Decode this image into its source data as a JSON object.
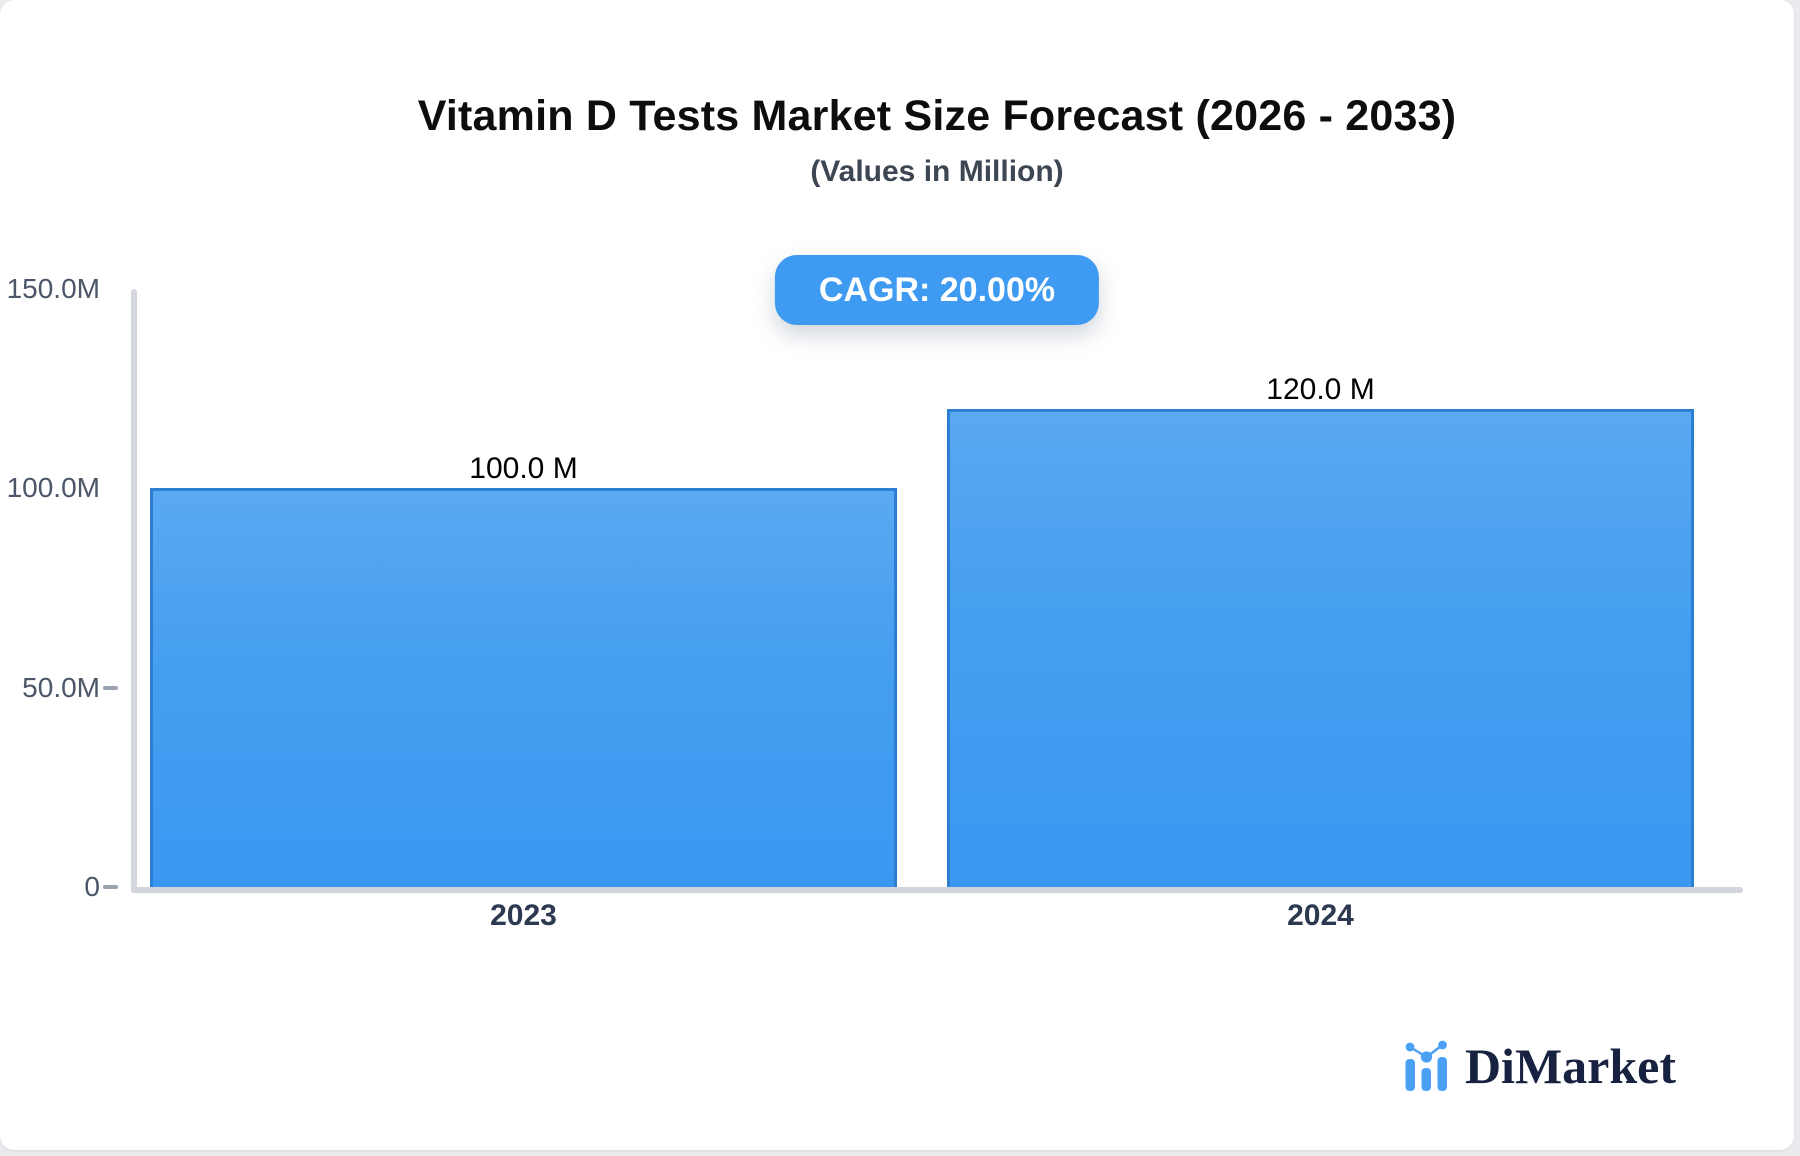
{
  "header": {
    "title": "Vitamin D Tests Market Size Forecast (2026 - 2033)",
    "subtitle": "(Values in Million)"
  },
  "badge": {
    "label": "CAGR: 20.00%"
  },
  "chart_data": {
    "type": "bar",
    "title": "Vitamin D Tests Market Size Forecast (2026 - 2033)",
    "subtitle": "(Values in Million)",
    "cagr_label": "CAGR: 20.00%",
    "categories": [
      "2023",
      "2024"
    ],
    "values": [
      100.0,
      120.0
    ],
    "value_labels": [
      "100.0 M",
      "120.0 M"
    ],
    "unit": "Million",
    "ylim": [
      0,
      150
    ],
    "yticks": [
      {
        "value": 150,
        "label": "150.0M",
        "dash": false
      },
      {
        "value": 100,
        "label": "100.0M",
        "dash": false
      },
      {
        "value": 50,
        "label": "50.0M",
        "dash": true
      },
      {
        "value": 0,
        "label": "0",
        "dash": true
      }
    ],
    "grid": false,
    "legend": false,
    "xlabel": "",
    "ylabel": ""
  },
  "logo": {
    "text": "DiMarket",
    "icon": "bar-chart-logo-icon"
  },
  "colors": {
    "badge_bg": "#3e9bf1",
    "bar_fill_top": "#5aa9f1",
    "bar_fill_bottom": "#3b97f1",
    "bar_border": "#2d7fd3",
    "axis_line": "#d5d8de",
    "tick_dash": "#9aa2b0",
    "ytick_label": "#4c5669",
    "xtick_label": "#2d3950",
    "value_label": "#000000",
    "logo_text": "#16223f",
    "logo_icon": "#4aa0f5"
  }
}
